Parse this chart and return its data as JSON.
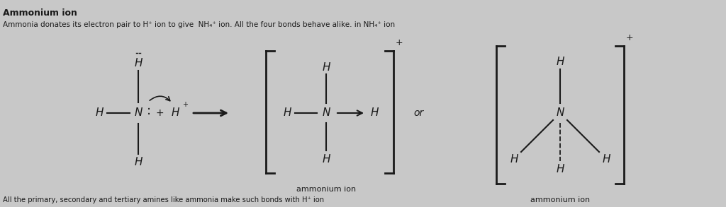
{
  "title": "Ammonium ion",
  "subtitle": "Ammonia donates its electron pair to H⁺ ion to give  NH₄⁺ ion. All the four bonds behave alike. in NH₄⁺ ion",
  "bg_color": "#c8c8c8",
  "text_color": "#1a1a1a",
  "label1": "ammonium ion",
  "label2": "ammonium ion"
}
